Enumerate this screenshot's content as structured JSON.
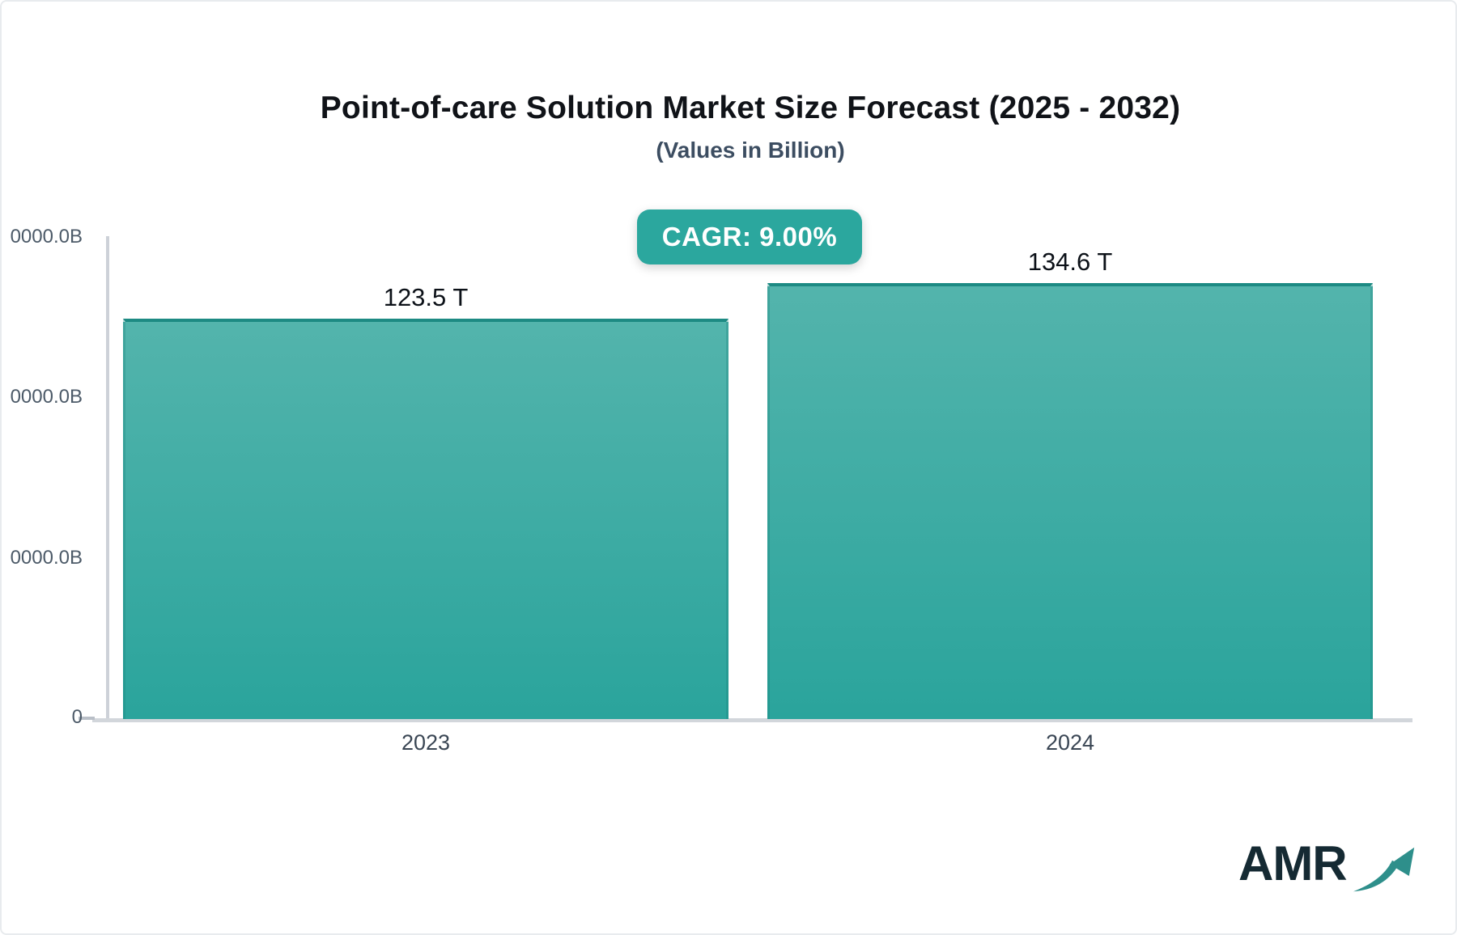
{
  "header": {
    "title": "Point-of-care Solution Market Size Forecast (2025 - 2032)",
    "subtitle": "(Values in Billion)"
  },
  "badge": {
    "label": "CAGR: 9.00%",
    "background": "#2ba79e",
    "text_color": "#ffffff"
  },
  "chart_data": {
    "type": "bar",
    "title": "Point-of-care Solution Market Size Forecast (2025 - 2032)",
    "subtitle": "(Values in Billion)",
    "categories": [
      "2023",
      "2024"
    ],
    "values": [
      123.5,
      134.6
    ],
    "value_unit": "T",
    "value_labels": [
      "123.5 T",
      "134.6 T"
    ],
    "cagr_label": "CAGR: 9.00%",
    "y_axis_tick_labels": [
      "0000.0B",
      "0000.0B",
      "0000.0B",
      "0"
    ],
    "ylim": [
      0,
      150
    ],
    "grid": false,
    "legend": "none",
    "bar_color_top": "#53b4ac",
    "bar_color_bottom": "#2aa49c",
    "bar_border_color": "#1d8a83"
  },
  "axis": {
    "y_ticks": [
      "0000.0B",
      "0000.0B",
      "0000.0B",
      "0"
    ]
  },
  "logo": {
    "text": "AMR",
    "arrow_color": "#2e8f8b",
    "text_color": "#152a33"
  }
}
